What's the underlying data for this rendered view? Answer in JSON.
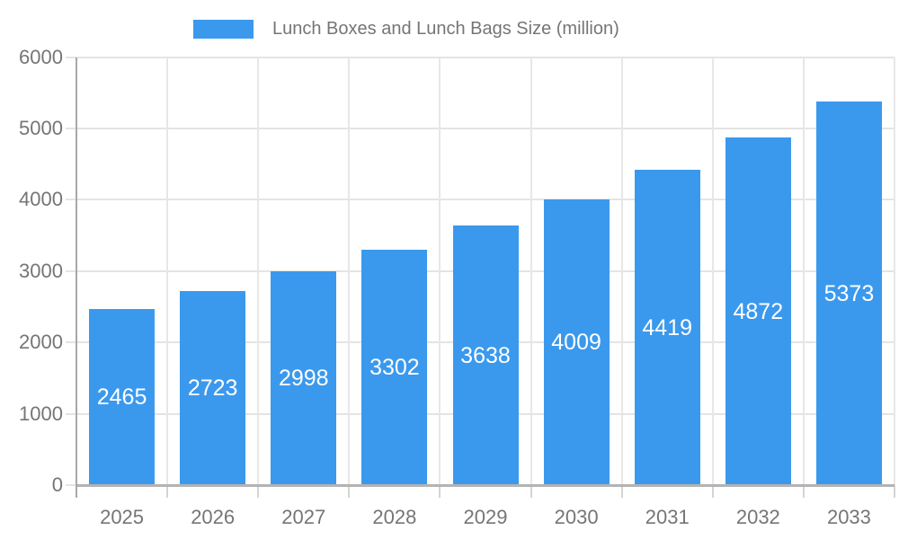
{
  "chart_data": {
    "type": "bar",
    "title": "Lunch Boxes and Lunch Bags Size (million)",
    "legend_label": "Lunch Boxes and Lunch Bags Size (million)",
    "legend_position": "top",
    "categories": [
      "2025",
      "2026",
      "2027",
      "2028",
      "2029",
      "2030",
      "2031",
      "2032",
      "2033"
    ],
    "values": [
      2465,
      2723,
      2998,
      3302,
      3638,
      4009,
      4419,
      4872,
      5373
    ],
    "xlabel": "",
    "ylabel": "",
    "ylim": [
      0,
      6000
    ],
    "yticks": [
      0,
      1000,
      2000,
      3000,
      4000,
      5000,
      6000
    ],
    "grid": true,
    "data_labels": true,
    "colors": {
      "bar": "#3b99ed",
      "data_label": "#ffffff",
      "tick_text": "#757575",
      "legend_text": "#757575",
      "gridline": "#e4e4e4",
      "axis_line": "#a8a8a8",
      "background": "#ffffff"
    }
  }
}
